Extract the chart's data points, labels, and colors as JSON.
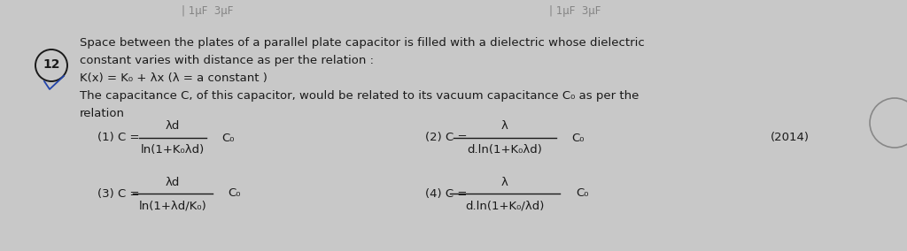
{
  "bg_color": "#c8c8c8",
  "top_text_left": "| 1μF  3μF",
  "top_text_right": "| 1μF  3μF",
  "question_number": "12",
  "main_text_line1": "Space between the plates of a parallel plate capacitor is filled with a dielectric whose dielectric",
  "main_text_line2": "constant varies with distance as per the relation :",
  "main_text_line3": "K(x) = K₀ + λx (λ = a constant )",
  "main_text_line4": "The capacitance C, of this capacitor, would be related to its vacuum capacitance C₀ as per the",
  "main_text_line5": "relation",
  "opt1_pre": "(1) C = ",
  "opt1_num": "λd",
  "opt1_den": "ln(1+K₀λd)",
  "opt1_post": "C₀",
  "opt2_pre": "(2) C = ",
  "opt2_num": "λ",
  "opt2_den": "d.ln(1+K₀λd)",
  "opt2_post": "C₀",
  "opt3_pre": "(3) C = ",
  "opt3_num": "λd",
  "opt3_den": "ln(1+λd/K₀)",
  "opt3_post": "C₀",
  "opt4_pre": "(4) C = ",
  "opt4_num": "λ",
  "opt4_den": "d.ln(1+K₀/λd)",
  "opt4_post": "C₀",
  "year": "(2014)",
  "font_size_main": 9.5,
  "font_size_small": 8.5,
  "text_color": "#1a1a1a",
  "text_color_faint": "#666666"
}
